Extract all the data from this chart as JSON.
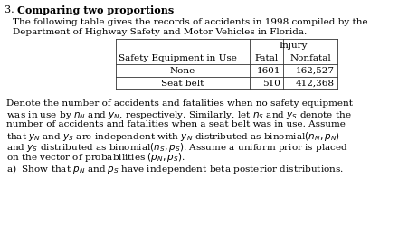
{
  "title_num": "3.",
  "title_bold": "Comparing two proportions",
  "intro_line1": "The following table gives the records of accidents in 1998 compiled by the",
  "intro_line2": "Department of Highway Safety and Motor Vehicles in Florida.",
  "table_injury_header": "Injury",
  "table_col1_header": "Safety Equipment in Use",
  "table_col2_header": "Fatal",
  "table_col3_header": "Nonfatal",
  "table_row1": [
    "None",
    "1601",
    "162,527"
  ],
  "table_row2": [
    "Seat belt",
    "510",
    "412,368"
  ],
  "body_lines": [
    "Denote the number of accidents and fatalities when no safety equipment",
    "was in use by $n_N$ and $y_N$, respectively. Similarly, let $n_S$ and $y_S$ denote the",
    "number of accidents and fatalities when a seat belt was in use. Assume",
    "that $y_N$ and $y_S$ are independent with $y_N$ distributed as binomial$(n_N, p_N)$",
    "and $y_S$ distributed as binomial$(n_S, p_S)$. Assume a uniform prior is placed",
    "on the vector of probabilities $(p_N, p_S)$."
  ],
  "sub_line": "a)  Show that $p_N$ and $p_S$ have independent beta posterior distributions.",
  "bg_color": "#ffffff",
  "text_color": "#000000",
  "font_size": 7.5,
  "title_font_size": 8.0
}
